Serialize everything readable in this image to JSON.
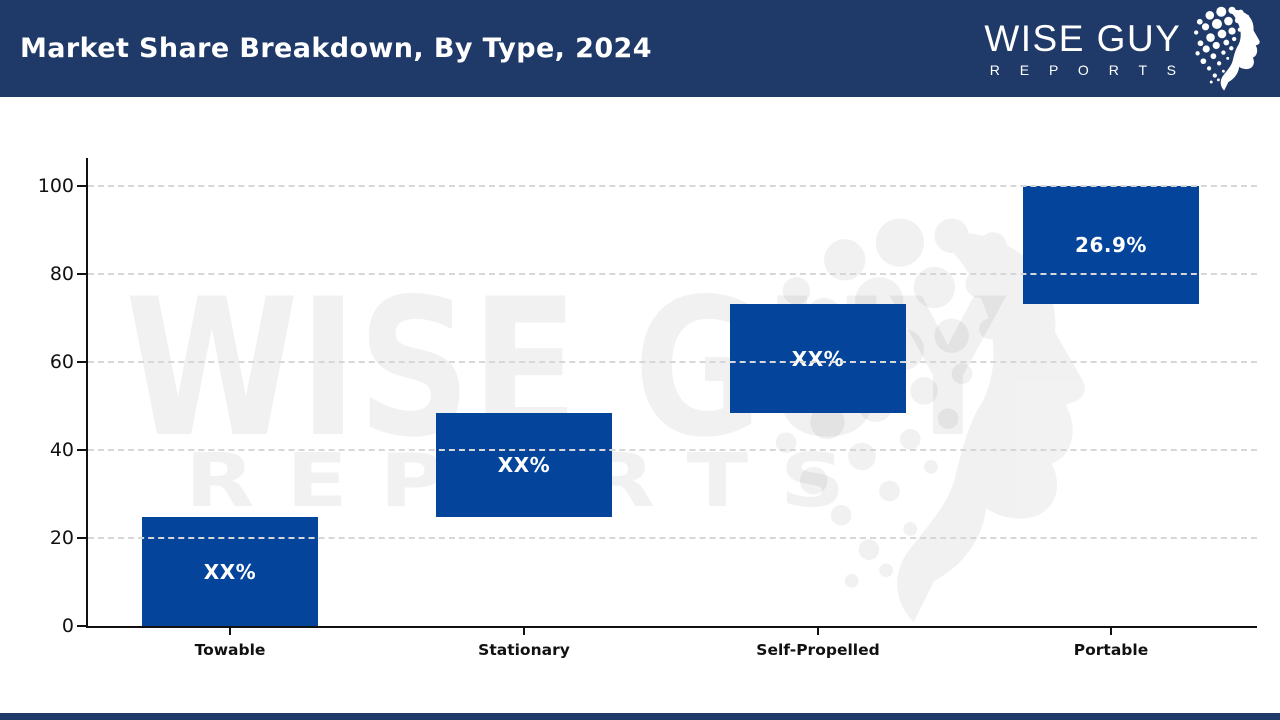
{
  "header": {
    "title": "Market Share Breakdown, By Type, 2024",
    "logo": {
      "line1": "WISE GUY",
      "line2": "R E P O R T S"
    }
  },
  "watermark": {
    "line1": "WISE GUY",
    "line2": "R E P O R T S"
  },
  "colors": {
    "header_bg": "#1f3a68",
    "footer_bg": "#1f3a68",
    "bar_blue": "#04459b",
    "gridline": "#d7d7d7",
    "axis_black": "#111111",
    "bar_label_white": "#ffffff"
  },
  "chart_data": {
    "type": "bar",
    "subtype": "floating-segment-waterfall",
    "title": "Market Share Breakdown, By Type, 2024",
    "categories": [
      "Towable",
      "Stationary",
      "Self-Propelled",
      "Portable"
    ],
    "series": [
      {
        "name": "Market Share (%)",
        "segment_start": [
          0,
          24.7,
          48.4,
          73.1
        ],
        "segment_end": [
          24.7,
          48.4,
          73.1,
          100
        ]
      }
    ],
    "bar_labels": [
      "XX%",
      "XX%",
      "XX%",
      "26.9%"
    ],
    "visible_value": {
      "category": "Portable",
      "value_pct": 26.9
    },
    "masked_value_placeholder": "XX%",
    "xlabel": "",
    "ylabel": "",
    "ylim": [
      0,
      100
    ],
    "yticks": [
      0,
      20,
      40,
      60,
      80,
      100
    ],
    "grid": {
      "horizontal": true,
      "style": "dashed"
    },
    "legend": "none",
    "bar_color": "#04459b",
    "bar_label_color": "#ffffff"
  }
}
